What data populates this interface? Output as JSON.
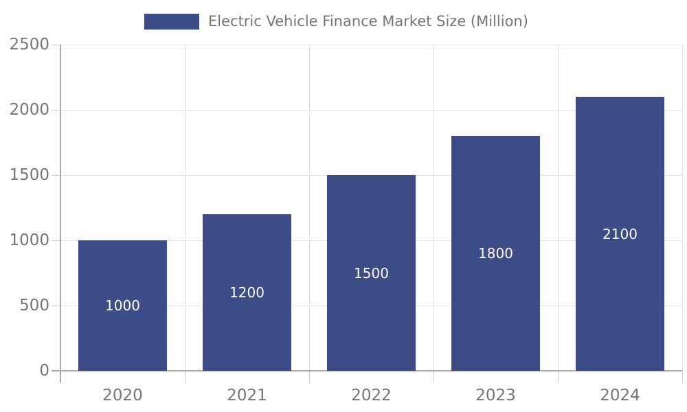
{
  "legend": {
    "label": "Electric Vehicle Finance Market Size (Million)"
  },
  "chart_data": {
    "type": "bar",
    "title": "Electric Vehicle Finance Market Size (Million)",
    "series_name": "Electric Vehicle Finance Market Size (Million)",
    "categories": [
      "2020",
      "2021",
      "2022",
      "2023",
      "2024"
    ],
    "values": [
      1000,
      1200,
      1500,
      1800,
      2100
    ],
    "data_labels": [
      "1000",
      "1200",
      "1500",
      "1800",
      "2100"
    ],
    "xlabel": "",
    "ylabel": "",
    "ylim": [
      0,
      2500
    ],
    "yticks": [
      0,
      500,
      1000,
      1500,
      2000,
      2500
    ],
    "grid": true,
    "legend_position": "top-center",
    "data_label_position": "inside-center",
    "colors": {
      "bar": "#3B4C87",
      "data_label": "#FFFFFF",
      "tick_label": "#757575",
      "legend_text": "#757575",
      "gridline": "#E3E3E3",
      "tick_mark": "#CCCCCC",
      "axis_line": "#AAAAAA",
      "background": "#FFFFFF"
    }
  }
}
